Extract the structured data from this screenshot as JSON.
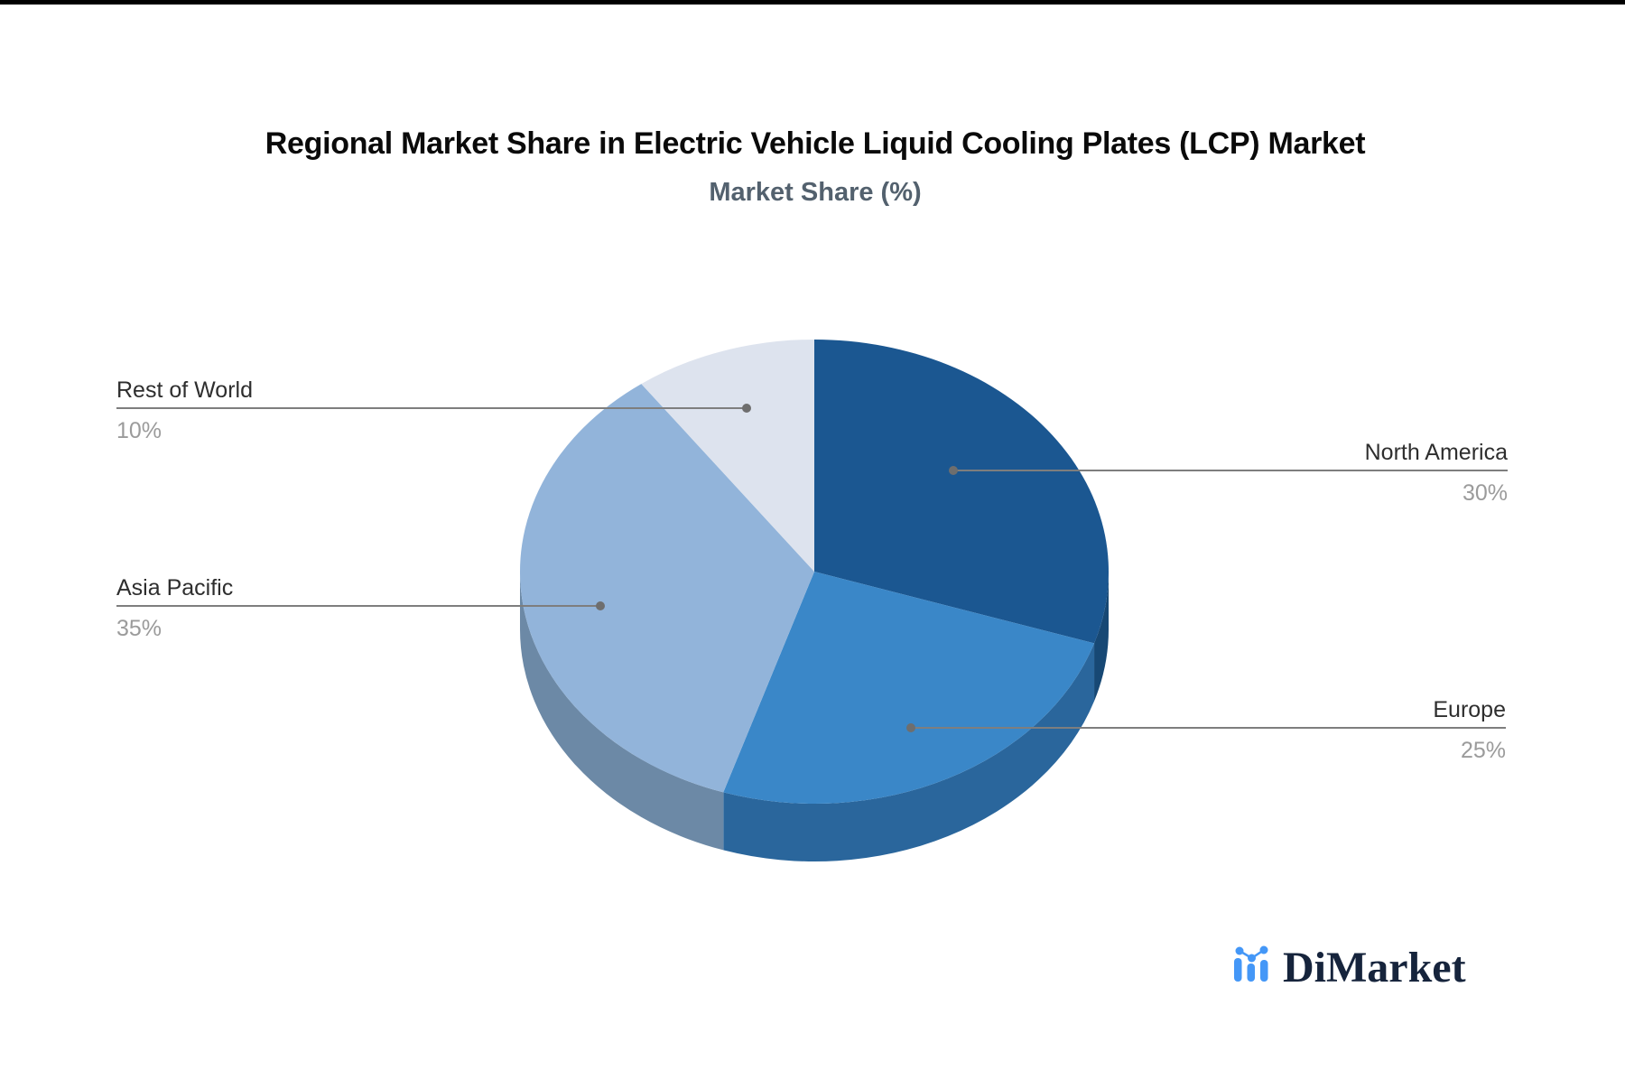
{
  "header": {
    "title": "Regional Market Share in Electric Vehicle Liquid Cooling Plates (LCP) Market",
    "subtitle": "Market Share (%)"
  },
  "chart_data": {
    "type": "pie",
    "title": "Regional Market Share in Electric Vehicle Liquid Cooling Plates (LCP) Market",
    "subtitle": "Market Share (%)",
    "unit": "%",
    "effect": "3d",
    "direction": "clockwise",
    "start_angle_deg": 0,
    "slices": [
      {
        "label": "North America",
        "value": 30,
        "pct_label": "30%",
        "color": "#1b5791",
        "side_color": "#174874"
      },
      {
        "label": "Europe",
        "value": 25,
        "pct_label": "25%",
        "color": "#3a87c8",
        "side_color": "#2a669c"
      },
      {
        "label": "Asia Pacific",
        "value": 35,
        "pct_label": "35%",
        "color": "#92b4da",
        "side_color": "#6c89a6"
      },
      {
        "label": "Rest of World",
        "value": 10,
        "pct_label": "10%",
        "color": "#dde3ee",
        "side_color": "#97a6bc"
      }
    ],
    "leader_line_color": "#7e7e7e",
    "label_color": "#2e2e2e",
    "pct_color": "#9b9b9b",
    "legend": "none"
  },
  "branding": {
    "logo_text": "DiMarket",
    "logo_icon": "bar-chart-sparkline-icon",
    "logo_text_color": "#16243c",
    "logo_icon_color": "#4497f7"
  }
}
